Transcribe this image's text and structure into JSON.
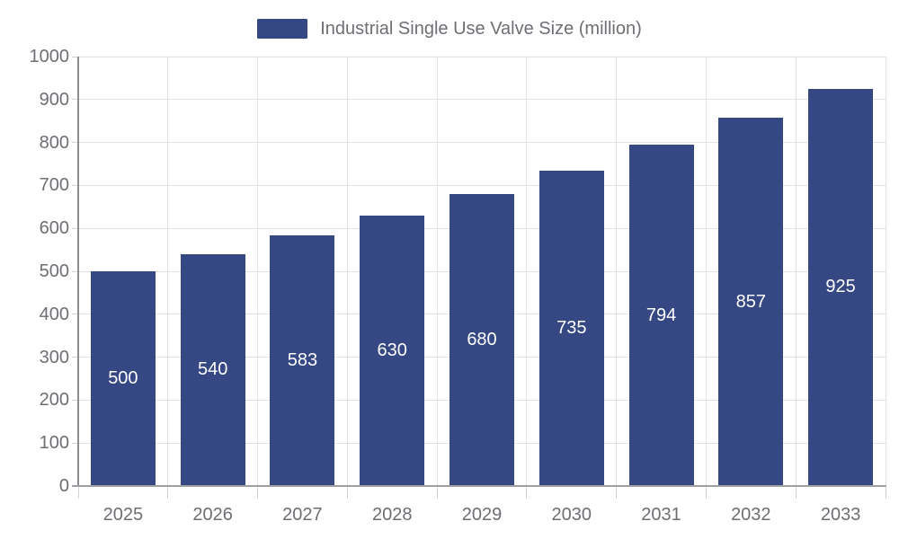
{
  "legend": {
    "label": "Industrial Single Use Valve Size (million)"
  },
  "colors": {
    "bar": "#354883",
    "grid": "#e0e0e6",
    "axis_x": "#a0a0a4",
    "axis_y": "#8c8c90",
    "tick": "#d2d2d6",
    "text_muted": "#6e6e74",
    "bar_label": "#ffffff"
  },
  "chart_data": {
    "type": "bar",
    "title": "Industrial Single Use Valve Size (million)",
    "categories": [
      "2025",
      "2026",
      "2027",
      "2028",
      "2029",
      "2030",
      "2031",
      "2032",
      "2033"
    ],
    "values": [
      500,
      540,
      583,
      630,
      680,
      735,
      794,
      857,
      925
    ],
    "xlabel": "",
    "ylabel": "",
    "ylim": [
      0,
      1000
    ],
    "yticks": [
      0,
      100,
      200,
      300,
      400,
      500,
      600,
      700,
      800,
      900,
      1000
    ],
    "grid": true,
    "legend_position": "top-center",
    "value_labels": "inside-center"
  }
}
